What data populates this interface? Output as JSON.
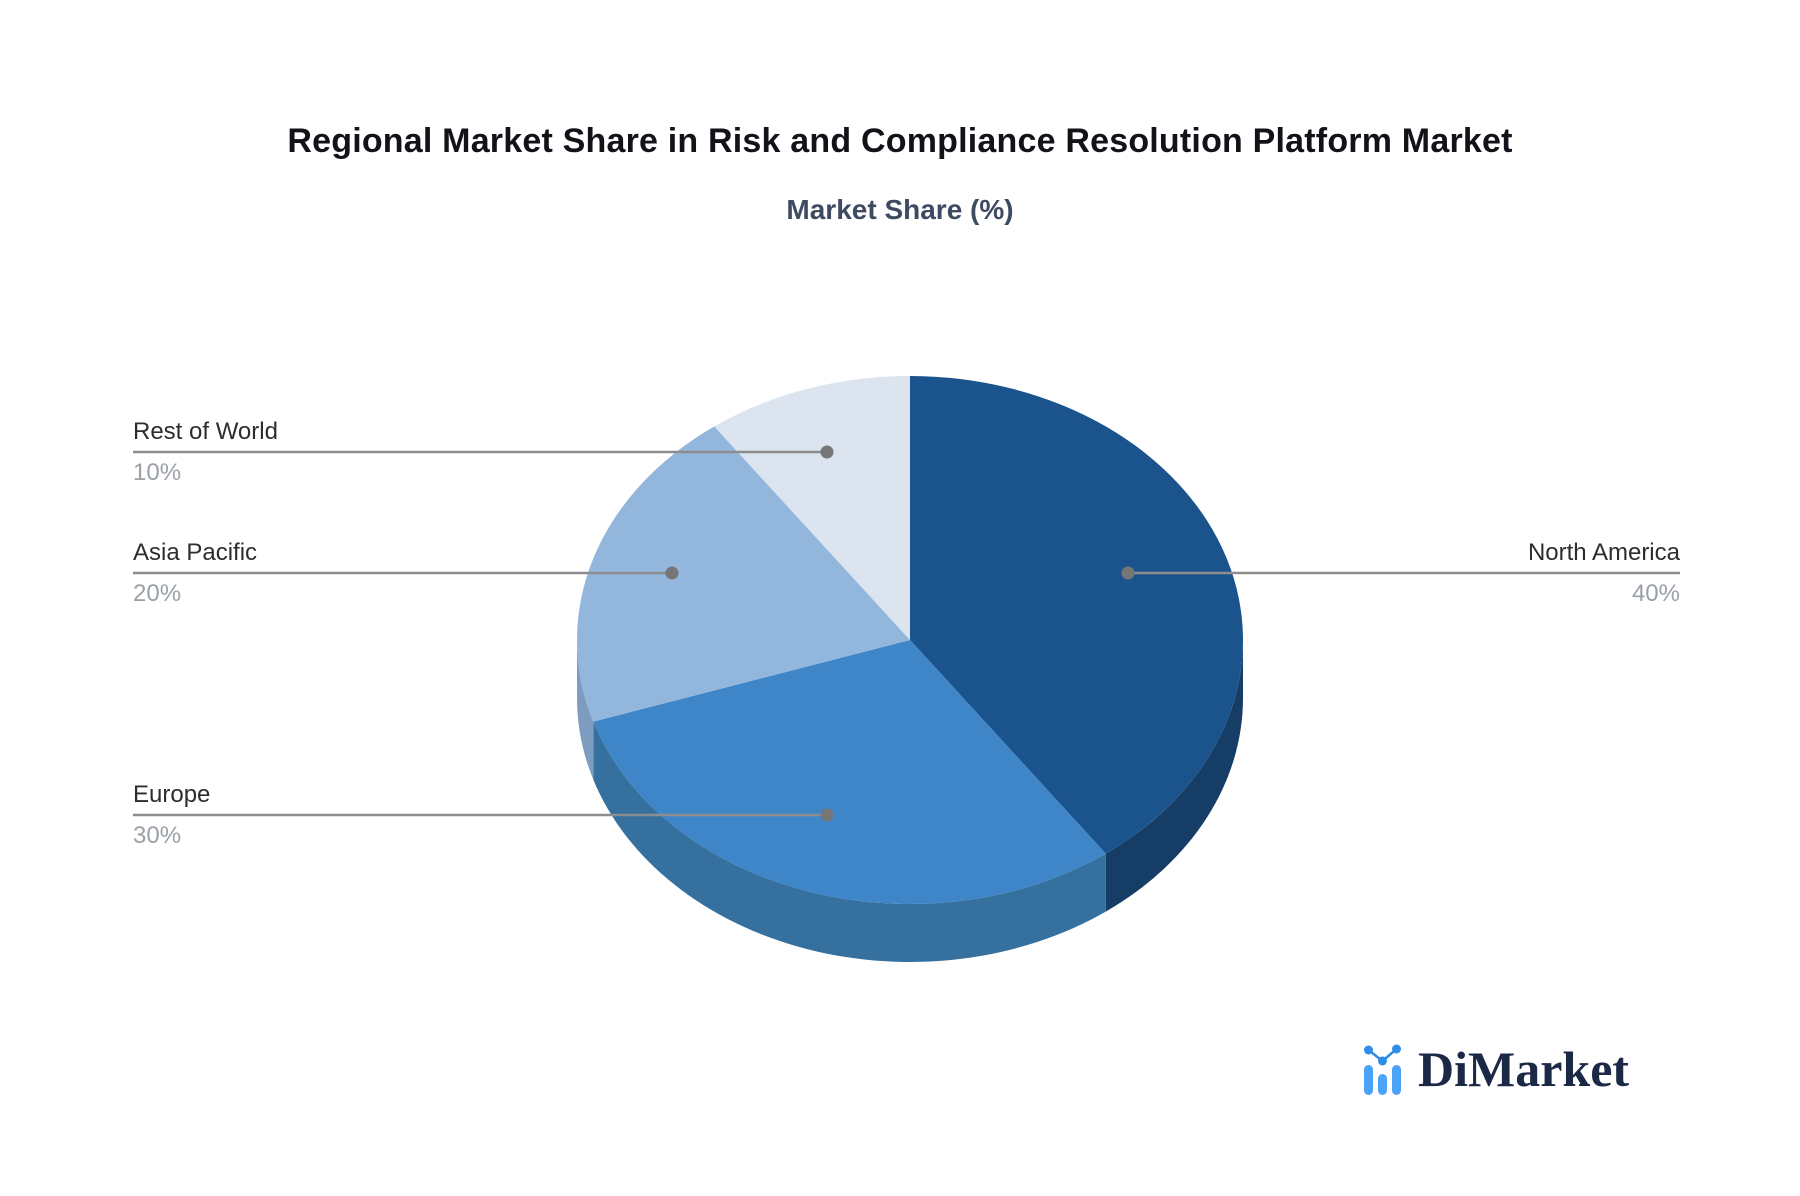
{
  "report": {
    "title": "Regional Market Share in Risk and Compliance Resolution Platform Market",
    "subtitle": "Market Share (%)"
  },
  "chart_data": {
    "type": "pie",
    "style": "3d-pie",
    "title": "Regional Market Share in Risk and Compliance Resolution Platform Market",
    "subtitle": "Market Share (%)",
    "unit": "%",
    "start_angle_deg": 0,
    "direction": "clockwise",
    "legend_position": "callout-leader-lines",
    "segments": [
      {
        "label": "North America",
        "value": 40,
        "pct_label": "40%",
        "color": "#1b538c",
        "side_color": "#153d66"
      },
      {
        "label": "Europe",
        "value": 30,
        "pct_label": "30%",
        "color": "#3e86c8",
        "side_color": "#35709f"
      },
      {
        "label": "Asia Pacific",
        "value": 20,
        "pct_label": "20%",
        "color": "#93b6dd",
        "side_color": "#7d9cc0"
      },
      {
        "label": "Rest of World",
        "value": 10,
        "pct_label": "10%",
        "color": "#dce4ef",
        "side_color": "#c0cbd9"
      }
    ]
  },
  "branding": {
    "logo_text": "DiMarket"
  },
  "colors": {
    "background": "#ffffff",
    "title_text": "#111318",
    "subtitle_text": "#3e4a61",
    "callout_label": "#2d2d2d",
    "callout_value": "#9aa0a6",
    "leader_line": "#8d8d8d",
    "leader_dot": "#767676",
    "logo_text": "#1b2947",
    "logo_bars": "#4aa3f7",
    "logo_accent": "#2f8de8"
  }
}
